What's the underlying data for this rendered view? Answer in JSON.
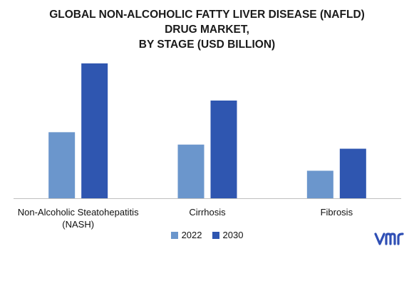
{
  "title_lines": [
    "GLOBAL NON-ALCOHOLIC FATTY LIVER DISEASE (NAFLD)",
    "DRUG MARKET,",
    "BY STAGE (USD BILLION)"
  ],
  "logo_text": "vmr",
  "colors": {
    "s2022": "#6b96cc",
    "s2030": "#2f56b0",
    "axis": "#bfbfbf",
    "logo": "#2f4fb5"
  },
  "chart_data": {
    "type": "bar",
    "categories": [
      "Non-Alcoholic Steatohepatitis (NASH)",
      "Cirrhosis",
      "Fibrosis"
    ],
    "category_label_lines": [
      [
        "Non-Alcoholic Steatohepatitis",
        "(NASH)"
      ],
      [
        "Cirrhosis"
      ],
      [
        "Fibrosis"
      ]
    ],
    "series": [
      {
        "name": "2022",
        "values": [
          4.8,
          3.9,
          2.0
        ]
      },
      {
        "name": "2030",
        "values": [
          9.8,
          7.1,
          3.6
        ]
      }
    ],
    "title": "GLOBAL NON-ALCOHOLIC FATTY LIVER DISEASE (NAFLD) DRUG MARKET, BY STAGE (USD BILLION)",
    "xlabel": "",
    "ylabel": "",
    "ylim": [
      0,
      10
    ],
    "grid": false,
    "legend_position": "bottom"
  }
}
